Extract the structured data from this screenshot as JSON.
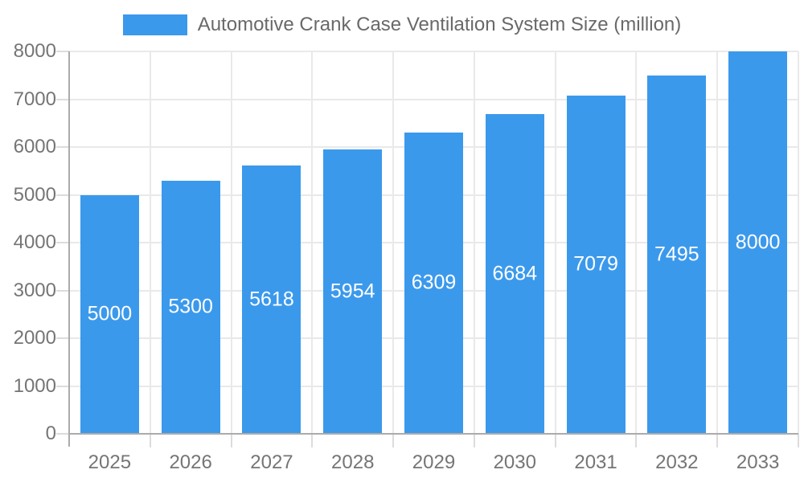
{
  "legend": {
    "label": "Automotive Crank Case Ventilation System Size (million)",
    "swatch_color": "#3B99EC"
  },
  "chart_data": {
    "type": "bar",
    "title": "Automotive Crank Case Ventilation System Size (million)",
    "categories": [
      "2025",
      "2026",
      "2027",
      "2028",
      "2029",
      "2030",
      "2031",
      "2032",
      "2033"
    ],
    "values": [
      5000,
      5300,
      5618,
      5954,
      6309,
      6684,
      7079,
      7495,
      8000
    ],
    "value_labels": [
      "5000",
      "5300",
      "5618",
      "5954",
      "6309",
      "6684",
      "7079",
      "7495",
      "8000"
    ],
    "xlabel": "",
    "ylabel": "",
    "ylim": [
      0,
      8000
    ],
    "yticks": [
      0,
      1000,
      2000,
      3000,
      4000,
      5000,
      6000,
      7000,
      8000
    ],
    "grid": true,
    "legend_position": "top",
    "value_label_position": "center",
    "colors": {
      "bar": "#3B99EC",
      "value_label": "#FFFFFF",
      "gridline": "#E9E9E9",
      "axis_line": "#ABABAB",
      "tick": "#DCDCDC",
      "axis_label": "#757575",
      "legend_text": "#696969"
    }
  }
}
